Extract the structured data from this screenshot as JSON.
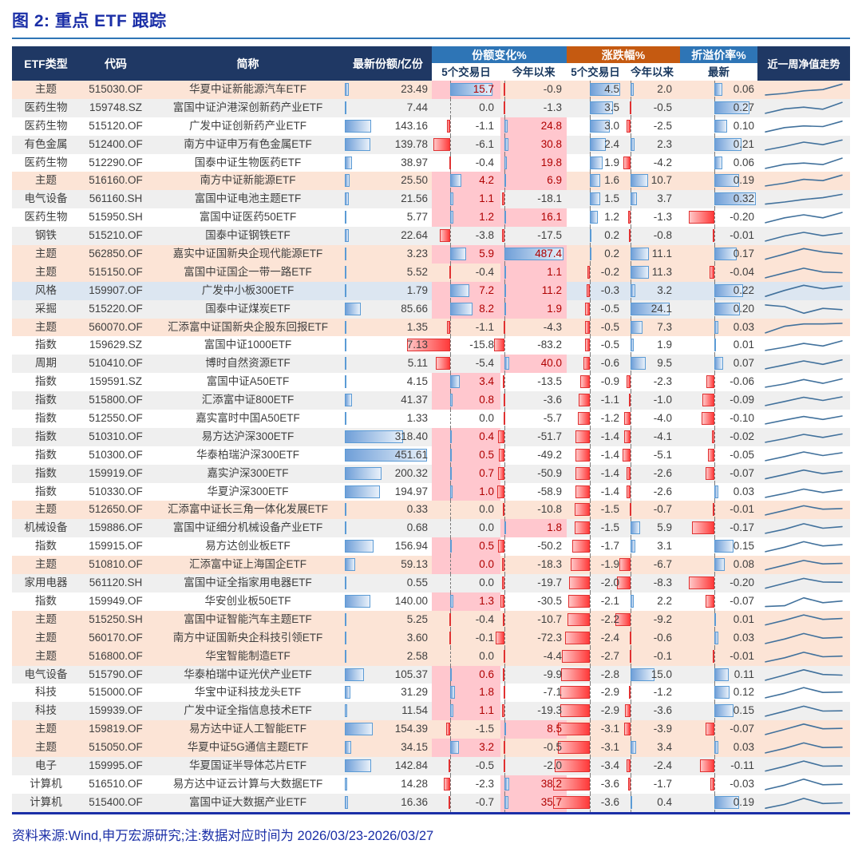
{
  "title": "图 2: 重点 ETF 跟踪",
  "source_note": "资料来源:Wind,申万宏源研究;注:数据对应时间为 2026/03/23-2026/03/27",
  "header": {
    "col_type": "ETF类型",
    "col_code": "代码",
    "col_name": "简称",
    "col_shares": "最新份额/亿份",
    "grp_share_change": "份额变化%",
    "grp_px_change": "涨跌幅%",
    "grp_premium": "折溢价率%",
    "col_spark": "近一周净值走势",
    "sub_5d": "5个交易日",
    "sub_ytd": "今年以来",
    "sub_latest": "最新"
  },
  "colors": {
    "header_navy": "#1F3864",
    "band_blue": "#2E75B6",
    "band_orange": "#C55A11",
    "title_blue": "#1B2FA7",
    "row_salmon": "#FCE4D6",
    "row_gray": "#EFEFEF",
    "row_white": "#FFFFFF",
    "row_blue": "#DCE6F1",
    "pink_highlight": "#FFC7CE",
    "red_text": "#B00000",
    "body_text": "#3F3F3F",
    "bar_blue_border": "#5B9BD5",
    "bar_red_border": "#E03131",
    "sparkline": "#41719C"
  },
  "chart_data": {
    "type": "table",
    "row_fields": [
      "type",
      "code",
      "name",
      "shares_100m",
      "share_chg_5d_pct",
      "share_chg_ytd_pct",
      "px_chg_5d_pct",
      "px_chg_ytd_pct",
      "premium_pct",
      "row_bg",
      "sparkline_norm"
    ],
    "pink_zero_share5_rows": [
      26
    ],
    "rows": [
      [
        "主题",
        "515030.OF",
        "华夏中证新能源汽车ETF",
        "23.49",
        "15.7",
        "-0.9",
        "4.5",
        "2.0",
        "0.06",
        "salmon",
        [
          0.1,
          0.22,
          0.42,
          0.52,
          0.95
        ]
      ],
      [
        "医药生物",
        "159748.SZ",
        "富国中证沪港深创新药产业ETF",
        "7.44",
        "0.0",
        "-1.3",
        "3.5",
        "-0.5",
        "0.27",
        "gray",
        [
          0.1,
          0.45,
          0.58,
          0.42,
          0.95
        ]
      ],
      [
        "医药生物",
        "515120.OF",
        "广发中证创新药产业ETF",
        "143.16",
        "-1.1",
        "24.8",
        "3.0",
        "-2.5",
        "0.10",
        "white",
        [
          0.08,
          0.42,
          0.55,
          0.5,
          0.92
        ]
      ],
      [
        "有色金属",
        "512400.OF",
        "南方中证申万有色金属ETF",
        "139.78",
        "-6.1",
        "30.8",
        "2.4",
        "2.3",
        "0.21",
        "gray",
        [
          0.1,
          0.38,
          0.72,
          0.52,
          0.88
        ]
      ],
      [
        "医药生物",
        "512290.OF",
        "国泰中证生物医药ETF",
        "38.97",
        "-0.4",
        "19.8",
        "1.9",
        "-4.2",
        "0.06",
        "white",
        [
          0.1,
          0.42,
          0.52,
          0.4,
          0.9
        ]
      ],
      [
        "主题",
        "516160.OF",
        "南方中证新能源ETF",
        "25.50",
        "4.2",
        "6.9",
        "1.6",
        "10.7",
        "0.19",
        "salmon",
        [
          0.1,
          0.32,
          0.62,
          0.52,
          0.95
        ]
      ],
      [
        "电气设备",
        "561160.SH",
        "富国中证电池主题ETF",
        "21.56",
        "1.1",
        "-18.1",
        "1.5",
        "3.7",
        "0.32",
        "gray",
        [
          0.12,
          0.28,
          0.48,
          0.62,
          0.88
        ]
      ],
      [
        "医药生物",
        "515950.SH",
        "富国中证医药50ETF",
        "5.77",
        "1.2",
        "16.1",
        "1.2",
        "-1.3",
        "-0.20",
        "white",
        [
          0.1,
          0.48,
          0.72,
          0.48,
          0.9
        ]
      ],
      [
        "钢铁",
        "515210.OF",
        "国泰中证钢铁ETF",
        "22.64",
        "-3.8",
        "-17.5",
        "0.2",
        "-0.8",
        "-0.01",
        "gray",
        [
          0.1,
          0.5,
          0.78,
          0.52,
          0.72
        ]
      ],
      [
        "主题",
        "562850.OF",
        "嘉实中证国新央企现代能源ETF",
        "3.23",
        "5.9",
        "487.4",
        "0.2",
        "11.1",
        "0.17",
        "salmon",
        [
          0.12,
          0.52,
          0.95,
          0.68,
          0.55
        ]
      ],
      [
        "主题",
        "515150.OF",
        "富国中证国企一带一路ETF",
        "5.52",
        "-0.4",
        "1.1",
        "-0.2",
        "11.3",
        "-0.04",
        "salmon",
        [
          0.1,
          0.48,
          0.85,
          0.55,
          0.5
        ]
      ],
      [
        "风格",
        "159907.OF",
        "广发中小板300ETF",
        "1.79",
        "7.2",
        "11.2",
        "-0.3",
        "3.2",
        "0.22",
        "blue",
        [
          0.08,
          0.55,
          0.95,
          0.68,
          0.88
        ]
      ],
      [
        "采掘",
        "515220.OF",
        "国泰中证煤炭ETF",
        "85.66",
        "8.2",
        "1.9",
        "-0.5",
        "24.1",
        "0.20",
        "gray",
        [
          0.85,
          0.72,
          0.2,
          0.58,
          0.48
        ]
      ],
      [
        "主题",
        "560070.OF",
        "汇添富中证国新央企股东回报ETF",
        "1.35",
        "-1.1",
        "-4.3",
        "-0.5",
        "7.3",
        "0.03",
        "salmon",
        [
          0.1,
          0.62,
          0.8,
          0.8,
          0.85
        ]
      ],
      [
        "指数",
        "159629.SZ",
        "富国中证1000ETF",
        "7.13",
        "-15.8",
        "-83.2",
        "-0.5",
        "1.9",
        "0.01",
        "white",
        [
          0.1,
          0.35,
          0.65,
          0.45,
          0.85
        ]
      ],
      [
        "周期",
        "510410.OF",
        "博时自然资源ETF",
        "5.11",
        "-5.4",
        "40.0",
        "-0.6",
        "9.5",
        "0.07",
        "gray",
        [
          0.1,
          0.4,
          0.72,
          0.45,
          0.8
        ]
      ],
      [
        "指数",
        "159591.SZ",
        "富国中证A50ETF",
        "4.15",
        "3.4",
        "-13.5",
        "-0.9",
        "-2.3",
        "-0.06",
        "white",
        [
          0.1,
          0.35,
          0.7,
          0.4,
          0.75
        ]
      ],
      [
        "指数",
        "515800.OF",
        "汇添富中证800ETF",
        "41.37",
        "0.8",
        "-3.6",
        "-1.1",
        "-1.0",
        "-0.09",
        "gray",
        [
          0.1,
          0.42,
          0.75,
          0.5,
          0.78
        ]
      ],
      [
        "指数",
        "512550.OF",
        "嘉实富时中国A50ETF",
        "1.33",
        "0.0",
        "-5.7",
        "-1.2",
        "-4.0",
        "-0.10",
        "white",
        [
          0.1,
          0.4,
          0.68,
          0.45,
          0.72
        ]
      ],
      [
        "指数",
        "510310.OF",
        "易方达沪深300ETF",
        "318.40",
        "0.4",
        "-51.7",
        "-1.4",
        "-4.1",
        "-0.02",
        "gray",
        [
          0.1,
          0.38,
          0.72,
          0.48,
          0.75
        ]
      ],
      [
        "指数",
        "510300.OF",
        "华泰柏瑞沪深300ETF",
        "451.61",
        "0.5",
        "-49.2",
        "-1.4",
        "-5.1",
        "-0.05",
        "white",
        [
          0.1,
          0.42,
          0.78,
          0.5,
          0.72
        ]
      ],
      [
        "指数",
        "159919.OF",
        "嘉实沪深300ETF",
        "200.32",
        "0.7",
        "-50.9",
        "-1.4",
        "-2.6",
        "-0.07",
        "gray",
        [
          0.12,
          0.45,
          0.8,
          0.52,
          0.7
        ]
      ],
      [
        "指数",
        "510330.OF",
        "华夏沪深300ETF",
        "194.97",
        "1.0",
        "-58.9",
        "-1.4",
        "-2.6",
        "0.03",
        "white",
        [
          0.1,
          0.4,
          0.75,
          0.48,
          0.68
        ]
      ],
      [
        "主题",
        "512650.OF",
        "汇添富中证长三角一体化发展ETF",
        "0.33",
        "0.0",
        "-10.8",
        "-1.5",
        "-0.7",
        "-0.01",
        "salmon",
        [
          0.1,
          0.45,
          0.82,
          0.55,
          0.6
        ]
      ],
      [
        "机械设备",
        "159886.OF",
        "富国中证细分机械设备产业ETF",
        "0.68",
        "0.0",
        "1.8",
        "-1.5",
        "5.9",
        "-0.17",
        "gray",
        [
          0.1,
          0.42,
          0.85,
          0.5,
          0.62
        ]
      ],
      [
        "指数",
        "159915.OF",
        "易方达创业板ETF",
        "156.94",
        "0.5",
        "-50.2",
        "-1.7",
        "3.1",
        "0.15",
        "white",
        [
          0.1,
          0.45,
          0.88,
          0.55,
          0.65
        ]
      ],
      [
        "主题",
        "510810.OF",
        "汇添富中证上海国企ETF",
        "59.13",
        "0.0",
        "-18.3",
        "-1.9",
        "-6.7",
        "0.08",
        "salmon",
        [
          0.12,
          0.48,
          0.85,
          0.58,
          0.62
        ]
      ],
      [
        "家用电器",
        "561120.SH",
        "富国中证全指家用电器ETF",
        "0.55",
        "0.0",
        "-19.7",
        "-2.0",
        "-8.3",
        "-0.20",
        "gray",
        [
          0.12,
          0.5,
          0.88,
          0.6,
          0.58
        ]
      ],
      [
        "指数",
        "159949.OF",
        "华安创业板50ETF",
        "140.00",
        "1.3",
        "-30.5",
        "-2.1",
        "2.2",
        "-0.07",
        "white",
        [
          0.12,
          0.18,
          0.8,
          0.42,
          0.55
        ]
      ],
      [
        "主题",
        "515250.SH",
        "富国中证智能汽车主题ETF",
        "5.25",
        "-0.4",
        "-10.7",
        "-2.2",
        "-9.2",
        "0.01",
        "salmon",
        [
          0.12,
          0.48,
          0.9,
          0.55,
          0.62
        ]
      ],
      [
        "主题",
        "560170.OF",
        "南方中证国新央企科技引领ETF",
        "3.60",
        "-0.1",
        "-72.3",
        "-2.4",
        "-0.6",
        "0.03",
        "salmon",
        [
          0.1,
          0.45,
          0.88,
          0.52,
          0.58
        ]
      ],
      [
        "主题",
        "516800.OF",
        "华宝智能制造ETF",
        "2.58",
        "0.0",
        "-4.4",
        "-2.7",
        "-0.1",
        "-0.01",
        "salmon",
        [
          0.1,
          0.42,
          0.85,
          0.5,
          0.55
        ]
      ],
      [
        "电气设备",
        "515790.OF",
        "华泰柏瑞中证光伏产业ETF",
        "105.37",
        "0.6",
        "-9.9",
        "-2.8",
        "15.0",
        "0.11",
        "gray",
        [
          0.1,
          0.5,
          0.92,
          0.55,
          0.5
        ]
      ],
      [
        "科技",
        "515000.OF",
        "华宝中证科技龙头ETF",
        "31.29",
        "1.8",
        "-7.1",
        "-2.9",
        "-1.2",
        "0.12",
        "white",
        [
          0.1,
          0.45,
          0.9,
          0.52,
          0.55
        ]
      ],
      [
        "科技",
        "159939.OF",
        "广发中证全指信息技术ETF",
        "11.54",
        "1.1",
        "-19.3",
        "-2.9",
        "-3.6",
        "0.15",
        "gray",
        [
          0.1,
          0.48,
          0.88,
          0.5,
          0.52
        ]
      ],
      [
        "主题",
        "159819.OF",
        "易方达中证人工智能ETF",
        "154.39",
        "-1.5",
        "8.5",
        "-3.1",
        "-3.9",
        "-0.07",
        "salmon",
        [
          0.1,
          0.5,
          0.92,
          0.55,
          0.58
        ]
      ],
      [
        "主题",
        "515050.OF",
        "华夏中证5G通信主题ETF",
        "34.15",
        "3.2",
        "-0.5",
        "-3.1",
        "3.4",
        "0.03",
        "salmon",
        [
          0.1,
          0.45,
          0.88,
          0.52,
          0.55
        ]
      ],
      [
        "电子",
        "159995.OF",
        "华夏国证半导体芯片ETF",
        "142.84",
        "-0.5",
        "-2.0",
        "-3.4",
        "-2.4",
        "-0.11",
        "gray",
        [
          0.12,
          0.48,
          0.9,
          0.5,
          0.52
        ]
      ],
      [
        "计算机",
        "516510.OF",
        "易方达中证云计算与大数据ETF",
        "14.28",
        "-2.3",
        "38.2",
        "-3.6",
        "-1.7",
        "-0.03",
        "white",
        [
          0.1,
          0.45,
          0.92,
          0.48,
          0.52
        ]
      ],
      [
        "计算机",
        "515400.OF",
        "富国中证大数据产业ETF",
        "16.36",
        "-0.7",
        "35.7",
        "-3.6",
        "0.4",
        "0.19",
        "gray",
        [
          0.08,
          0.38,
          0.85,
          0.45,
          0.5
        ]
      ]
    ]
  }
}
